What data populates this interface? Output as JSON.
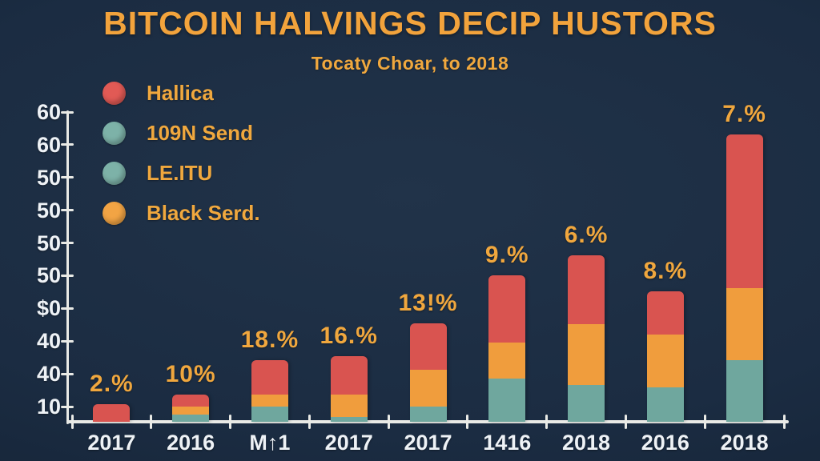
{
  "title": "BITCOIN HALVINGS DECIP HUSTORS",
  "subtitle": "Tocaty Choar, to 2018",
  "legend": {
    "items": [
      {
        "label": "Hallica",
        "color": "#e15a55"
      },
      {
        "label": "109N Send",
        "color": "#7db2a8"
      },
      {
        "label": "LE.ITU",
        "color": "#7db2a8"
      },
      {
        "label": "Black Serd.",
        "color": "#f2a444"
      }
    ]
  },
  "colors": {
    "title_text": "#f2a33c",
    "subtitle_text": "#f0a83e",
    "value_label_text": "#f0a73e",
    "axis_line": "#e9eae6",
    "axis_text": "#eef2f6",
    "bar_red": "#d95450",
    "bar_orange": "#f09d3d",
    "bar_teal": "#6fa79e",
    "background": "#1b2c42"
  },
  "y_axis": {
    "tick_labels": [
      "60",
      "60",
      "50",
      "50",
      "50",
      "50",
      "$0",
      "40",
      "40",
      "10"
    ]
  },
  "chart_data": {
    "type": "bar",
    "stacked": true,
    "title": "BITCOIN HALVINGS DECIP HUSTORS",
    "subtitle": "Tocaty Choar, to 2018",
    "categories": [
      "2017",
      "2016",
      "M↑1",
      "2017",
      "2017",
      "1416",
      "2018",
      "2016",
      "2018"
    ],
    "bar_labels": [
      "2.%",
      "10%",
      "18.%",
      "16.%",
      "13!%",
      "9.%",
      "6.%",
      "8.%",
      "7.%"
    ],
    "series": [
      {
        "name": "teal (LE.ITU)",
        "color": "#6fa79e",
        "values": [
          0,
          1.4,
          3.0,
          1.0,
          3.0,
          8.4,
          7.2,
          6.7,
          12.0
        ]
      },
      {
        "name": "orange (Black Serd.)",
        "color": "#f09d3d",
        "values": [
          0,
          1.6,
          2.3,
          4.2,
          7.0,
          6.9,
          11.7,
          10.2,
          13.9
        ]
      },
      {
        "name": "red (Hallica)",
        "color": "#d95450",
        "values": [
          3.4,
          2.2,
          6.7,
          7.5,
          9.1,
          13.1,
          13.3,
          8.3,
          29.8
        ]
      }
    ],
    "totals_label_units": [
      3.4,
      5.2,
      12.0,
      12.7,
      19.1,
      28.4,
      32.2,
      25.2,
      55.7
    ],
    "ylim": [
      0,
      60
    ],
    "y_tick_labels": [
      "60",
      "60",
      "50",
      "50",
      "50",
      "50",
      "$0",
      "40",
      "40",
      "10"
    ],
    "legend_position": "upper-left",
    "grid": false
  }
}
